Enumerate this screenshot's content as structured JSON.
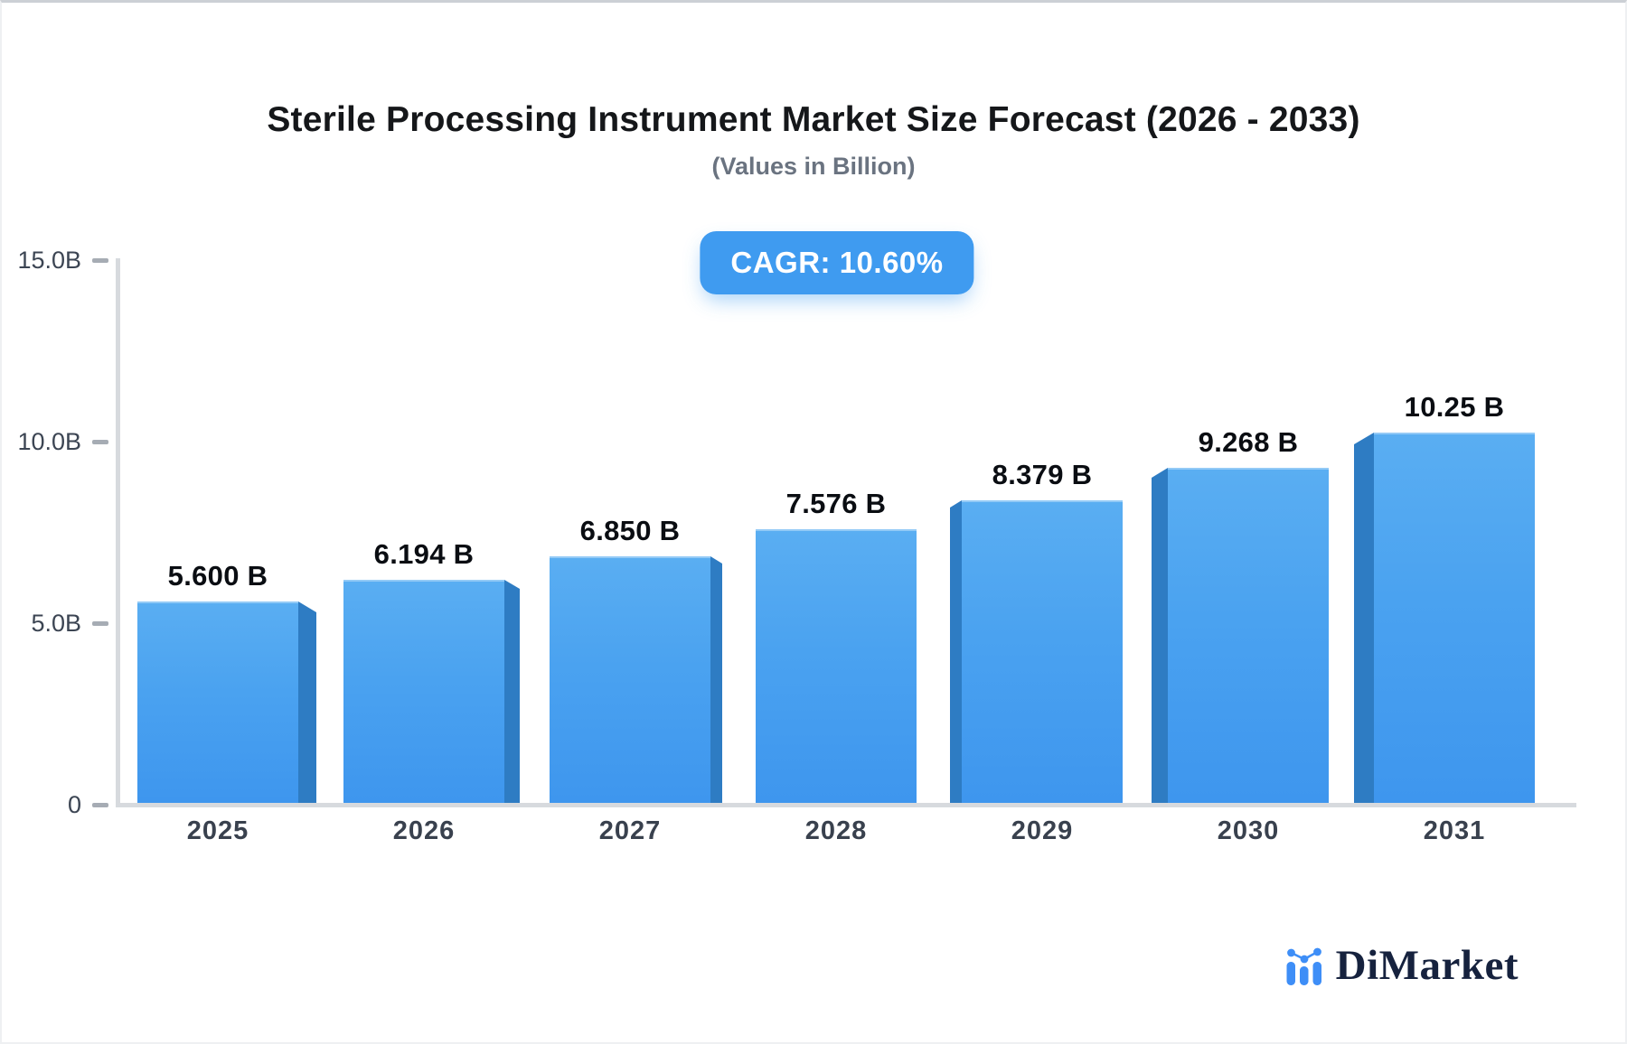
{
  "header": {
    "title": "Sterile Processing Instrument Market Size Forecast (2026 - 2033)",
    "subtitle": "(Values in Billion)"
  },
  "badge": {
    "label": "CAGR: 10.60%",
    "bg_color": "#3f9bf0",
    "text_color": "#ffffff"
  },
  "chart_data": {
    "type": "bar",
    "title": "Sterile Processing Instrument Market Size Forecast (2026 - 2033)",
    "subtitle": "(Values in Billion)",
    "categories": [
      "2025",
      "2026",
      "2027",
      "2028",
      "2029",
      "2030",
      "2031"
    ],
    "values": [
      5.6,
      6.194,
      6.85,
      7.576,
      8.379,
      9.268,
      10.25
    ],
    "value_labels": [
      "5.600 B",
      "6.194 B",
      "6.850 B",
      "7.576 B",
      "8.379 B",
      "9.268 B",
      "10.25 B"
    ],
    "xlabel": "",
    "ylabel": "",
    "ylim": [
      0,
      15
    ],
    "yticks": [
      {
        "value": 0,
        "label": "0"
      },
      {
        "value": 5,
        "label": "5.0B"
      },
      {
        "value": 10,
        "label": "10.0B"
      },
      {
        "value": 15,
        "label": "15.0B"
      }
    ],
    "grid": "off",
    "legend": "none",
    "bar_style": "3d-extruded",
    "colors": {
      "bar_face_top": "#5aaef2",
      "bar_face_bottom": "#3e96ee",
      "bar_side": "#2e7cc3",
      "axis_line": "#d7dade",
      "tick_dash": "#a6acb4",
      "tick_text": "#3c4553",
      "category_text": "#39414e",
      "value_text": "#0a0d12"
    }
  },
  "logo": {
    "text": "DiMarket",
    "icon": "bar-chart-sparkline-logo-icon",
    "icon_color": "#3e8ef7",
    "text_color": "#16223e"
  }
}
